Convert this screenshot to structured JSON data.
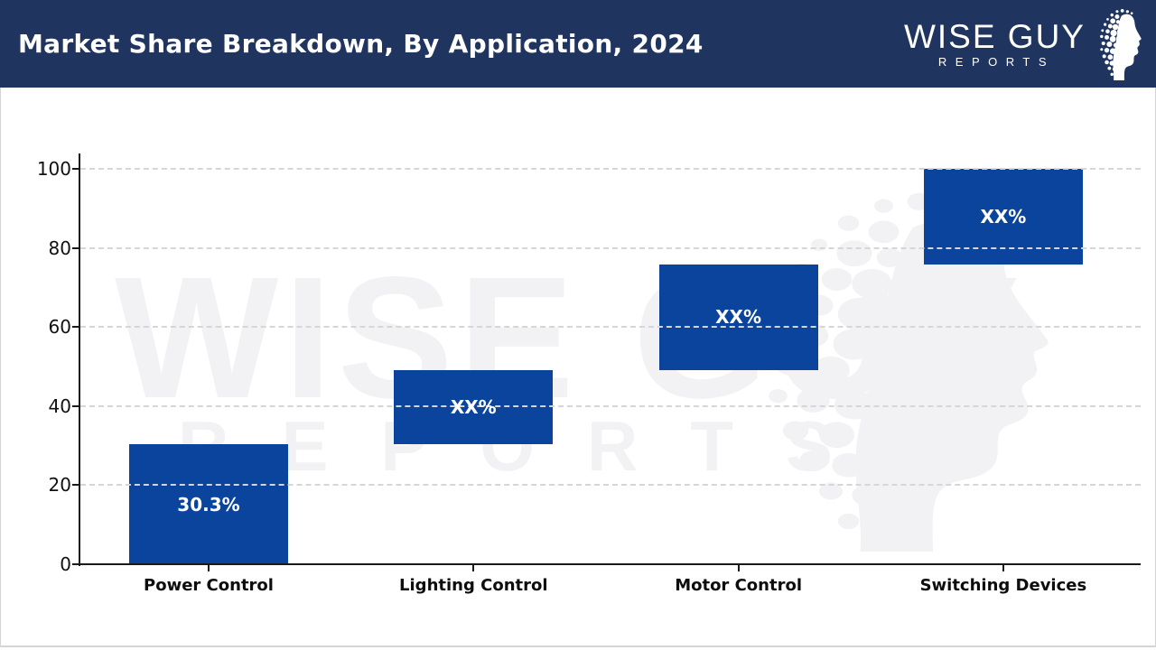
{
  "header": {
    "title": "Market Share Breakdown, By Application, 2024",
    "logo": {
      "wordmark": "WISE GUY",
      "subtitle": "REPORTS"
    }
  },
  "watermark": {
    "wordmark": "WISE GUY",
    "subtitle": "REPORTS"
  },
  "colors": {
    "header_bg": "#1f3560",
    "bar": "#0a449c",
    "bar_label": "#ffffff",
    "axis": "#1a1a1a",
    "grid": "#d6d6d6",
    "tick_label": "#111111",
    "watermark": "#f2f2f5"
  },
  "chart_data": {
    "type": "bar",
    "subtype": "waterfall",
    "title": "Market Share Breakdown, By Application, 2024",
    "xlabel": "",
    "ylabel": "",
    "categories": [
      "Power Control",
      "Lighting Control",
      "Motor Control",
      "Switching Devices"
    ],
    "segments": [
      {
        "category": "Power Control",
        "start": 0,
        "end": 30.3,
        "label": "30.3%"
      },
      {
        "category": "Lighting Control",
        "start": 30.3,
        "end": 49.1,
        "label": "XX%"
      },
      {
        "category": "Motor Control",
        "start": 49.1,
        "end": 75.8,
        "label": "XX%"
      },
      {
        "category": "Switching Devices",
        "start": 75.8,
        "end": 100,
        "label": "XX%"
      }
    ],
    "yticks": [
      0,
      20,
      40,
      60,
      80,
      100
    ],
    "ylim": [
      0,
      104
    ],
    "grid": "horizontal-dashed",
    "legend": "none"
  }
}
